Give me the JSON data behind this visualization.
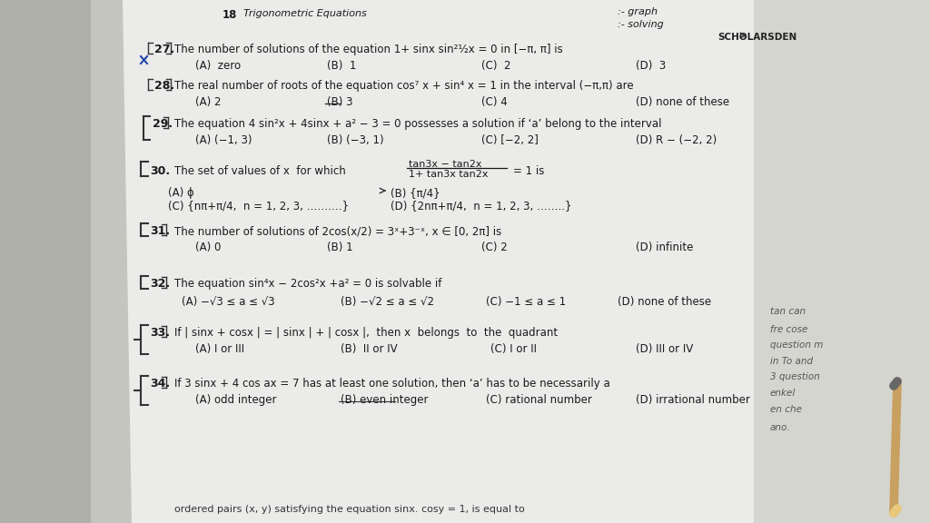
{
  "background_color": "#d8d8d5",
  "paper_color": "#e8e8e4",
  "text_color": "#1a1a1a",
  "page_number": "18",
  "chapter_title": "Trigonometric Equations",
  "top_right_line1": ":- graph",
  "top_right_line2": ":- solving",
  "watermark": "SCHOLARSDEN",
  "q27_main": "The number of solutions of the equation 1+ sinx sin²½x = 0 in [−π, π] is",
  "q27_a": "(A)  zero",
  "q27_b": "(B)  1",
  "q27_c": "(C)  2",
  "q27_d": "(D)  3",
  "q28_main": "The real number of roots of the equation cos⁷ x + sin⁴ x = 1 in the interval (−π,π) are",
  "q28_a": "(A) 2",
  "q28_b": "(B) 3",
  "q28_c": "(C) 4",
  "q28_d": "(D) none of these",
  "q29_main": "The equation 4 sin²x + 4sinx + a² − 3 = 0 possesses a solution if ‘a’ belong to the interval",
  "q29_a": "(A) (−1, 3)",
  "q29_b": "(B) (−3, 1)",
  "q29_c": "(C) [−2, 2]",
  "q29_d": "(D) R − (−2, 2)",
  "q30_main": "The set of values of x  for which",
  "q30_frac_num": "tan3x − tan2x",
  "q30_frac_den": "1+ tan3x tan2x",
  "q30_suffix": "= 1 is",
  "q30_a": "(A) ϕ",
  "q30_b": "(B) {π/4}",
  "q30_c": "(C) {nπ+π/4,  n = 1, 2, 3, …….…}",
  "q30_d": "(D) {2nπ+π/4,  n = 1, 2, 3, ……..}",
  "q31_main": "The number of solutions of 2cos(x/2) = 3ˣ+3⁻ˣ, x ∈ [0, 2π] is",
  "q31_a": "(A) 0",
  "q31_b": "(B) 1",
  "q31_c": "(C) 2",
  "q31_d": "(D) infinite",
  "q32_main": "The equation sin⁴x − 2cos²x +a² = 0 is solvable if",
  "q32_a": "(A) −√3 ≤ a ≤ √3",
  "q32_b": "(B) −√2 ≤ a ≤ √2",
  "q32_c": "(C) −1 ≤ a ≤ 1",
  "q32_d": "(D) none of these",
  "q33_main": "If | sinx + cosx | = | sinx | + | cosx |,  then x  belongs  to  the  quadrant",
  "q33_a": "(A) I or III",
  "q33_b": "(B)  II or IV",
  "q33_c": "(C) I or II",
  "q33_d": "(D) III or IV",
  "q34_main": "If 3 sinx + 4 cos ax = 7 has at least one solution, then ‘a’ has to be necessarily a",
  "q34_a": "(A) odd integer",
  "q34_b": "(B) even integer",
  "q34_c": "(C) rational number",
  "q34_d": "(D) irrational number",
  "bottom_text": "ordered pairs (x, y) satisfying the equation sinx. cosy = 1, is equal to",
  "note1": "tan can",
  "note2": "fre cose",
  "note3": "question m",
  "note4": "in To and",
  "note5": "3 question",
  "note6": "enkel",
  "note7": "en che",
  "note8": "ano."
}
